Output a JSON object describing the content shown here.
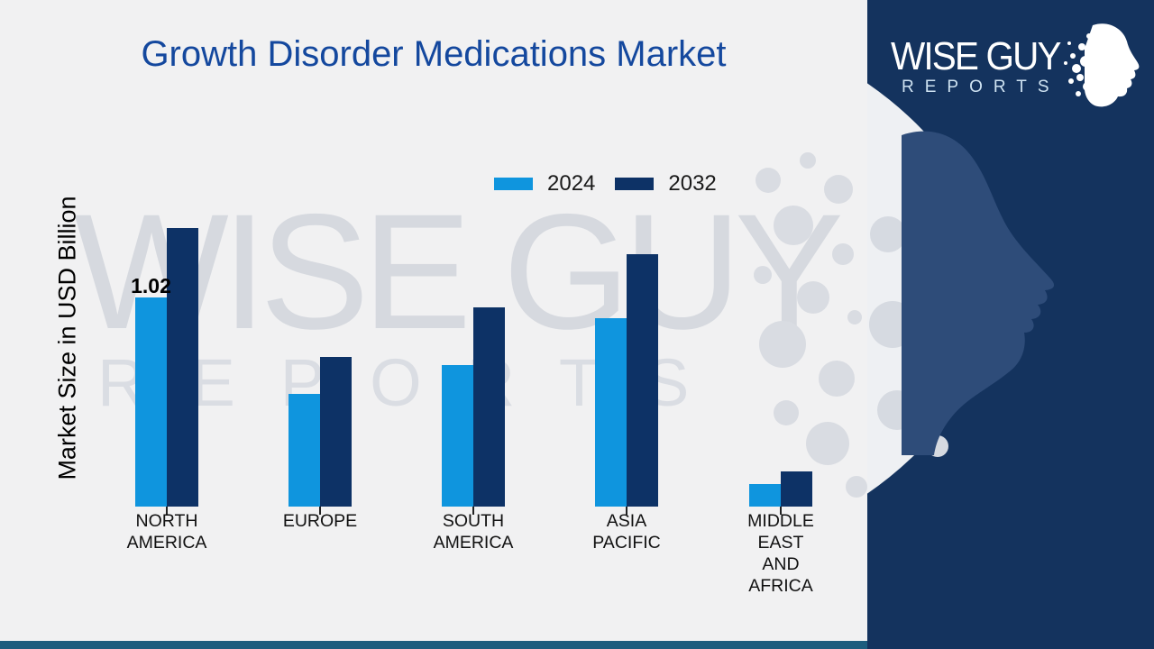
{
  "title": "Growth Disorder Medications Market",
  "y_axis_label": "Market Size in USD Billion",
  "watermark": {
    "line1": "WISE GUY",
    "line2": "REPORTS"
  },
  "logo": {
    "line1": "WISE GUY",
    "line2": "REPORTS"
  },
  "colors": {
    "title": "#14489e",
    "series_2024": "#0f95de",
    "series_2032": "#0d3266",
    "brand_band": "#14335e",
    "bottom_strip": "#1d5d7e",
    "background": "#f1f1f2"
  },
  "chart_data": {
    "type": "bar",
    "title": "Growth Disorder Medications Market",
    "ylabel": "Market Size in USD Billion",
    "xlabel": "",
    "categories": [
      "NORTH\nAMERICA",
      "EUROPE",
      "SOUTH\nAMERICA",
      "ASIA\nPACIFIC",
      "MIDDLE\nEAST\nAND\nAFRICA"
    ],
    "series": [
      {
        "name": "2024",
        "color": "#0f95de",
        "values": [
          1.02,
          0.55,
          0.69,
          0.92,
          0.11
        ]
      },
      {
        "name": "2032",
        "color": "#0d3266",
        "values": [
          1.36,
          0.73,
          0.97,
          1.23,
          0.17
        ]
      }
    ],
    "data_labels": [
      {
        "series_index": 0,
        "category_index": 0,
        "text": "1.02"
      }
    ],
    "ylim": [
      0,
      1.5
    ],
    "grid": false,
    "legend_position": "top-center"
  }
}
